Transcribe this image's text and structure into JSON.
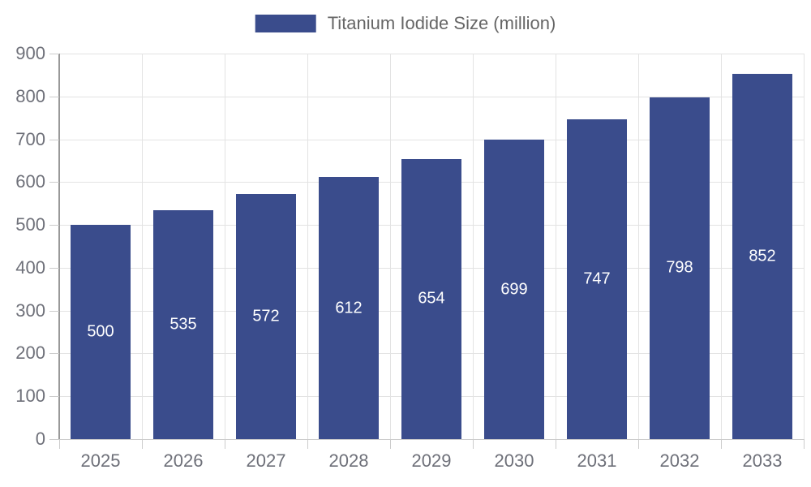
{
  "colors": {
    "bar": "#3A4C8C",
    "grid": "#E3E3E3",
    "axis_line": "#999999",
    "tick_line": "#CCCCCC",
    "axis_text": "#6E7079",
    "legend_text": "#666666",
    "value_text": "#FFFFFF",
    "background": "#FFFFFF"
  },
  "chart_data": {
    "type": "bar",
    "title": "",
    "legend": "Titanium Iodide Size (million)",
    "categories": [
      "2025",
      "2026",
      "2027",
      "2028",
      "2029",
      "2030",
      "2031",
      "2032",
      "2033"
    ],
    "values": [
      500,
      535,
      572,
      612,
      654,
      699,
      747,
      798,
      852
    ],
    "xlabel": "",
    "ylabel": "",
    "ylim": [
      0,
      900
    ],
    "yticks": [
      0,
      100,
      200,
      300,
      400,
      500,
      600,
      700,
      800,
      900
    ],
    "grid": true,
    "legend_position": "top-center",
    "value_label_position": "inside-center"
  }
}
